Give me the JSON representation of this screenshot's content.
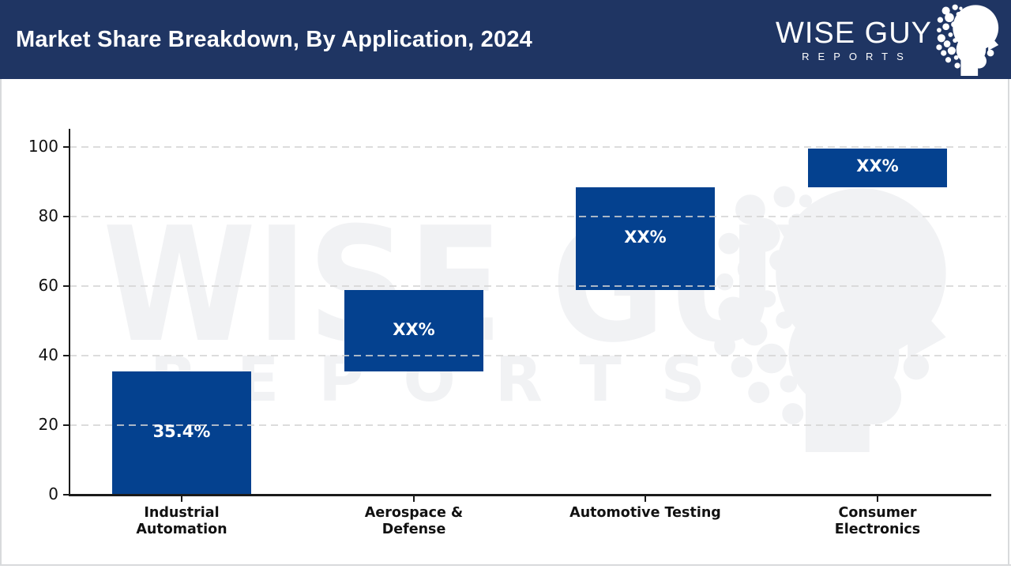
{
  "header": {
    "title": "Market Share Breakdown, By Application, 2024",
    "bg_color": "#1f3563",
    "logo": {
      "line1": "WISE GUY",
      "line2": "REPORTS"
    }
  },
  "watermark": {
    "line1": "WISE GUY",
    "line2": "REPORTS"
  },
  "chart_data": {
    "type": "bar",
    "subtype": "waterfall",
    "title": "Market Share Breakdown, By Application, 2024",
    "categories": [
      "Industrial\nAutomation",
      "Aerospace &\nDefense",
      "Automotive Testing",
      "Consumer\nElectronics"
    ],
    "segments": [
      {
        "category": "Industrial Automation",
        "start": 0,
        "end": 35.4,
        "label": "35.4%"
      },
      {
        "category": "Aerospace & Defense",
        "start": 35.4,
        "end": 58.9,
        "label": "XX%"
      },
      {
        "category": "Automotive Testing",
        "start": 58.9,
        "end": 88.4,
        "label": "XX%"
      },
      {
        "category": "Consumer Electronics",
        "start": 88.4,
        "end": 99.6,
        "label": "XX%"
      }
    ],
    "xlabel": "",
    "ylabel": "",
    "ylim": [
      0,
      105
    ],
    "yticks": [
      0,
      20,
      40,
      60,
      80,
      100
    ],
    "grid": "horizontal-dashed",
    "legend": "none",
    "bar_color": "#04418f",
    "gridline_color": "#d4d4d4",
    "axis_color": "#1a1a1a"
  }
}
